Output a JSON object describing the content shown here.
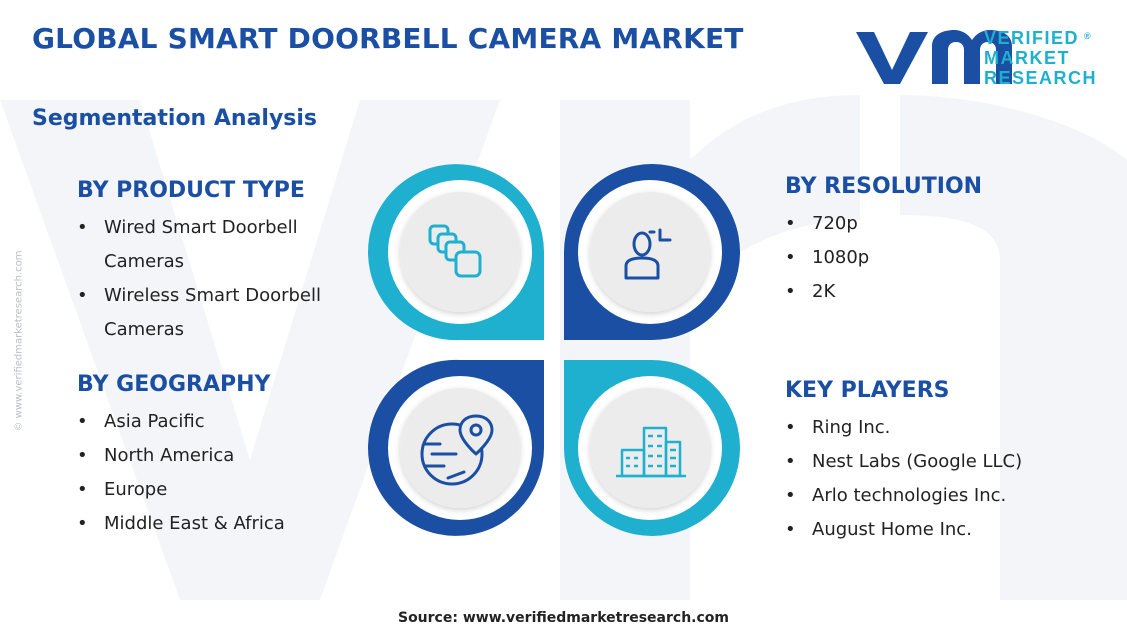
{
  "header": {
    "title": "GLOBAL SMART DOORBELL CAMERA MARKET",
    "subtitle": "Segmentation Analysis"
  },
  "logo": {
    "line1": "VERIFIED",
    "line2": "MARKET",
    "line3": "RESEARCH",
    "registered": "®",
    "color_dark": "#1a4fa3",
    "color_light": "#1fb0cf"
  },
  "watermark_text": "© www.verifiedmarketresearch.com",
  "segments": {
    "product_type": {
      "heading": "BY PRODUCT TYPE",
      "items": [
        "Wired Smart Doorbell Cameras",
        "Wireless Smart Doorbell Cameras"
      ]
    },
    "geography": {
      "heading": "BY GEOGRAPHY",
      "items": [
        "Asia Pacific",
        "North America",
        "Europe",
        "Middle East & Africa"
      ]
    },
    "resolution": {
      "heading": "BY RESOLUTION",
      "items": [
        "720p",
        "1080p",
        "2K"
      ]
    },
    "key_players": {
      "heading": "KEY PLAYERS",
      "items": [
        "Ring Inc.",
        "Nest Labs (Google LLC)",
        "Arlo technologies Inc.",
        "August Home Inc."
      ]
    }
  },
  "icons": {
    "top_left": "stacked-cards-icon",
    "top_right": "person-focus-icon",
    "bottom_left": "globe-location-icon",
    "bottom_right": "city-buildings-icon"
  },
  "colors": {
    "primary_blue": "#1a4fa3",
    "cyan": "#1fb0cf",
    "text": "#222222"
  },
  "source": "Source: www.verifiedmarketresearch.com"
}
